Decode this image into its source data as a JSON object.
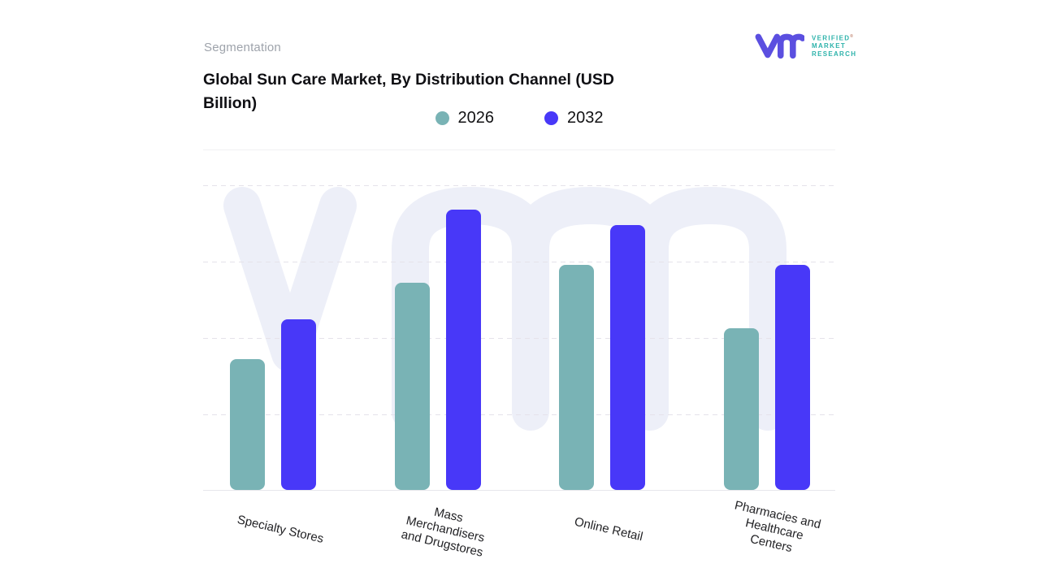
{
  "header": {
    "eyebrow": "Segmentation",
    "title": "Global Sun Care Market, By Distribution Channel (USD Billion)",
    "title_lines": [
      "Global Sun Care Market, By Distribution Channel (USD",
      "Billion)"
    ],
    "logo": {
      "monogram": "vm",
      "mark_color": "#5b4fe0",
      "text_color": "#2eb3ab",
      "lines": [
        "VERIFIED",
        "MARKET",
        "RESEARCH"
      ],
      "registered": "®"
    }
  },
  "legend": [
    {
      "label": "2026",
      "color": "#79b3b5"
    },
    {
      "label": "2032",
      "color": "#4838f8"
    }
  ],
  "chart_data": {
    "type": "bar",
    "title": "Global Sun Care Market, By Distribution Channel (USD Billion)",
    "xlabel": "",
    "ylabel": "",
    "units": "USD Billion",
    "value_axis_labeled": false,
    "note": "No numeric y-axis shown; values are estimated relative heights (percent of plot height, top gridline = 100).",
    "categories": [
      "Specialty Stores",
      "Mass Merchandisers and Drugstores",
      "Online Retail",
      "Pharmacies and Healthcare Centers"
    ],
    "category_lines": [
      [
        "Specialty Stores"
      ],
      [
        "Mass",
        "Merchandisers",
        "and Drugstores"
      ],
      [
        "Online Retail"
      ],
      [
        "Pharmacies and",
        "Healthcare",
        "Centers"
      ]
    ],
    "series": [
      {
        "name": "2026",
        "color": "#79b3b5",
        "values": [
          43,
          68,
          74,
          53
        ]
      },
      {
        "name": "2032",
        "color": "#4838f8",
        "values": [
          56,
          92,
          87,
          74
        ]
      }
    ],
    "ylim": [
      0,
      100
    ],
    "grid": "horizontal dashed",
    "legend_position": "top center",
    "bar_corner_radius_px": 8,
    "label_rotation_deg": 13,
    "watermark": {
      "name": "vm-watermark",
      "color": "#edeff8"
    }
  }
}
